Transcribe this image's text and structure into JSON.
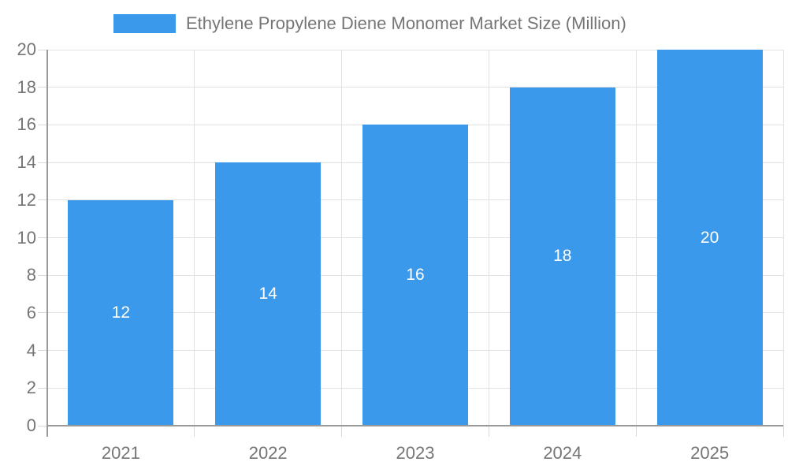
{
  "legend": {
    "label": "Ethylene Propylene Diene Monomer Market Size (Million)"
  },
  "colors": {
    "bar": "#3b99ec",
    "axis": "#999999",
    "grid": "#e2e2e2",
    "tick": "#d9d9d9",
    "tick_label": "#757575",
    "bar_label": "#ffffff",
    "background": "#ffffff"
  },
  "chart_data": {
    "type": "bar",
    "categories": [
      "2021",
      "2022",
      "2023",
      "2024",
      "2025"
    ],
    "values": [
      12,
      14,
      16,
      18,
      20
    ],
    "title": "Ethylene Propylene Diene Monomer Market Size (Million)",
    "xlabel": "",
    "ylabel": "",
    "ylim": [
      0,
      20
    ],
    "ytick_step": 2,
    "grid": true,
    "legend_position": "top",
    "show_value_labels_inside_bars": true
  }
}
